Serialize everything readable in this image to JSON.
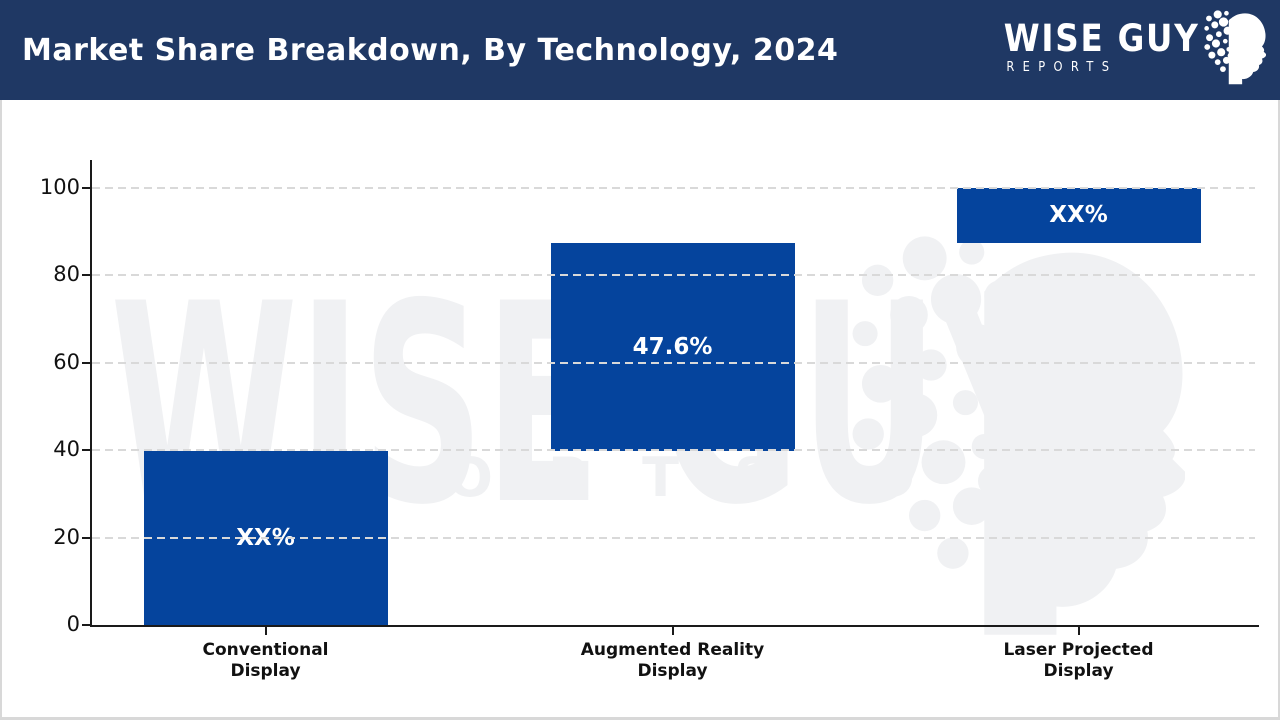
{
  "header": {
    "title": "Market Share Breakdown, By Technology, 2024",
    "logo": {
      "line1": "WISE GUY",
      "line2": "REPORTS"
    }
  },
  "watermark": {
    "line1": "WISE GUY",
    "line2": "REPORTS"
  },
  "colors": {
    "header_bg": "#1f3864",
    "bar_blue": "#05449d",
    "grid_gray": "#d9d9d9",
    "watermark_gray": "#f0f1f3",
    "axis_black": "#1a1a1a"
  },
  "chart_data": {
    "type": "bar",
    "subtype": "waterfall-stacked-floating-bars",
    "title": "Market Share Breakdown, By Technology, 2024",
    "categories": [
      "Conventional Display",
      "Augmented Reality Display",
      "Laser Projected Display"
    ],
    "categories_lines": [
      [
        "Conventional",
        "Display"
      ],
      [
        "Augmented Reality",
        "Display"
      ],
      [
        "Laser Projected",
        "Display"
      ]
    ],
    "segments": [
      {
        "start": 0,
        "end": 39.8,
        "label": "XX%"
      },
      {
        "start": 39.8,
        "end": 87.4,
        "label": "47.6%"
      },
      {
        "start": 87.4,
        "end": 100,
        "label": "XX%"
      }
    ],
    "values": [
      39.8,
      47.6,
      12.6
    ],
    "bar_labels": [
      "XX%",
      "47.6%",
      "XX%"
    ],
    "xlabel": "",
    "ylabel": "",
    "yticks": [
      0,
      20,
      40,
      60,
      80,
      100
    ],
    "ylim": [
      0,
      106
    ],
    "grid": "horizontal-dashed-above-bars",
    "legend": "none",
    "bar_color": "#05449d"
  }
}
